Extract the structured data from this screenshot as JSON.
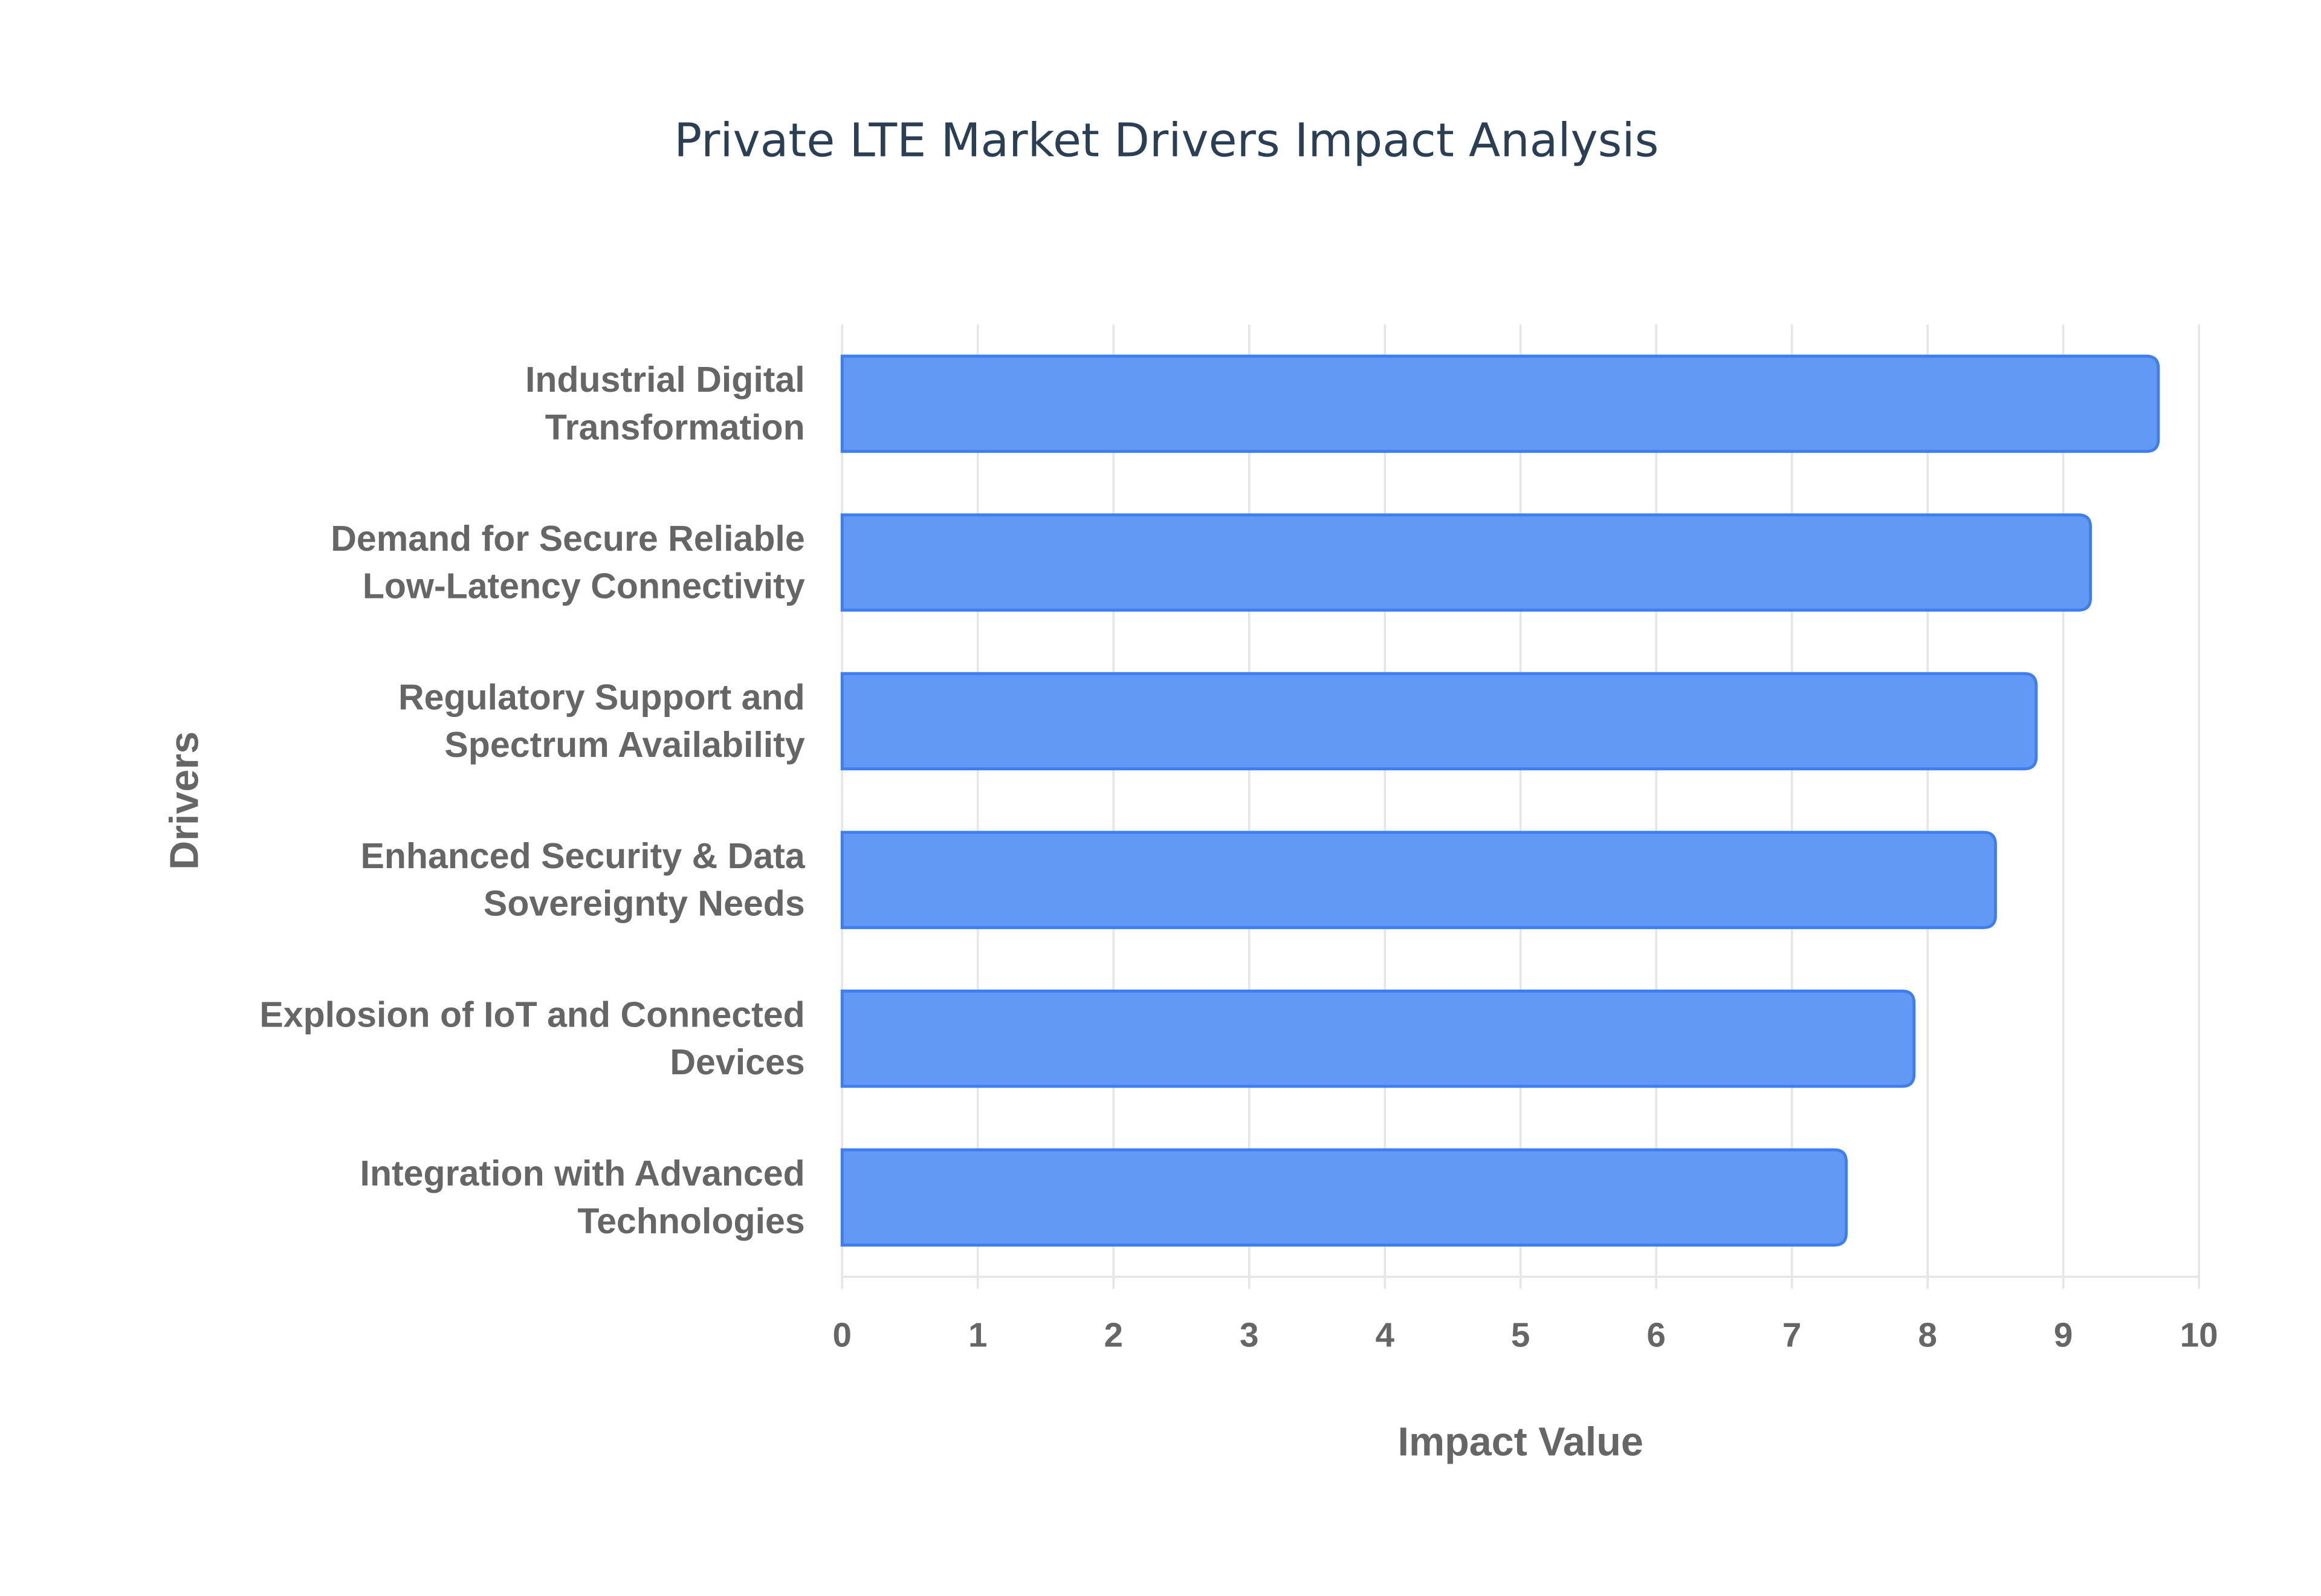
{
  "chart_data": {
    "type": "bar",
    "orientation": "horizontal",
    "title": "Private LTE Market Drivers Impact Analysis",
    "xlabel": "Impact Value",
    "ylabel": "Drivers",
    "xlim": [
      0,
      10
    ],
    "xticks": [
      "0",
      "1",
      "2",
      "3",
      "4",
      "5",
      "6",
      "7",
      "8",
      "9",
      "10"
    ],
    "grid": true,
    "categories": [
      [
        "Industrial Digital",
        "Transformation"
      ],
      [
        "Demand for Secure Reliable",
        "Low-Latency Connectivity"
      ],
      [
        "Regulatory Support and",
        "Spectrum Availability"
      ],
      [
        "Enhanced Security & Data",
        "Sovereignty Needs"
      ],
      [
        "Explosion of IoT and Connected",
        "Devices"
      ],
      [
        "Integration with Advanced",
        "Technologies"
      ]
    ],
    "values": [
      9.7,
      9.2,
      8.8,
      8.5,
      7.9,
      7.4
    ],
    "bar_color": "#6199f5",
    "bar_edge_color": "#3f7ef0"
  }
}
